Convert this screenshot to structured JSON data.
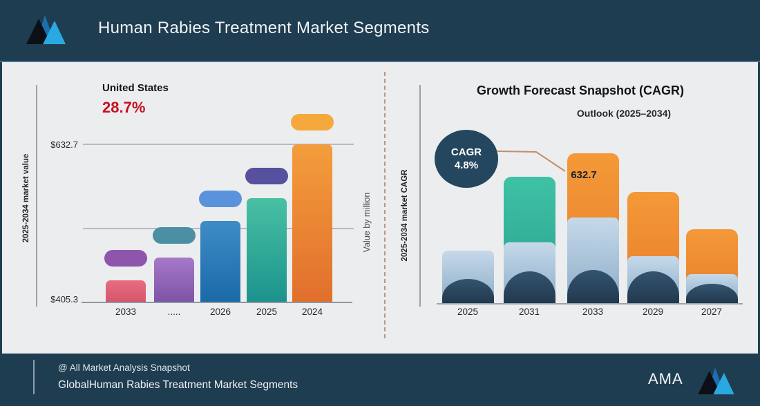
{
  "header": {
    "title": "Human Rabies Treatment Market Segments"
  },
  "brand": {
    "name": "AMA",
    "logo_colors": {
      "dark": "#0c1016",
      "blue": "#1c6fb0",
      "cyan": "#2aa9e1"
    }
  },
  "left_chart": {
    "region_label": "United States",
    "region_value": "28.7%",
    "accent_color": "#c6111f",
    "y_axis_label": "2025-2034 market value",
    "y_tick_top": "$632.7",
    "y_tick_bottom": "$405.3"
  },
  "middle": {
    "value_axis_note": "Value by million",
    "cagr_axis_label": "2025-2034 market CAGR"
  },
  "right_chart": {
    "title": "Growth Forecast Snapshot (CAGR)",
    "subtitle": "Outlook (2025–2034)",
    "cagr_badge": {
      "label": "CAGR",
      "value": "4.8%"
    },
    "peak_label": "632.7",
    "connector_color": "#c38e6b"
  },
  "footer": {
    "line1": "@ All Market Analysis Snapshot",
    "line2": "GlobalHuman Rabies Treatment Market Segments",
    "brand": "AMA"
  },
  "chart_data": [
    {
      "name": "us-market-value",
      "type": "bar",
      "title": "United States",
      "ylabel": "2025-2034 market value",
      "ylim": [
        405.3,
        660
      ],
      "yticks_labeled": [
        "$405.3",
        "$632.7"
      ],
      "y_gridline_values": [
        519,
        632.7
      ],
      "grid": true,
      "categories": [
        "2033",
        ".....",
        "2026",
        "2025",
        "2024"
      ],
      "values": [
        436,
        469,
        522,
        555,
        632.7
      ],
      "values_note": "estimated from gridlines; 2024 aligns with labeled 632.7 line",
      "bars": [
        {
          "category": "2033",
          "value": 436,
          "colors": [
            "#e76d81",
            "#d6566c"
          ],
          "cap_color": "#8d55ac"
        },
        {
          "category": ".....",
          "value": 469,
          "colors": [
            "#a678c9",
            "#7e54a6"
          ],
          "cap_color": "#4b8fa4"
        },
        {
          "category": "2026",
          "value": 522,
          "colors": [
            "#3f8cc5",
            "#1b6aa9"
          ],
          "cap_color": "#5b92dc"
        },
        {
          "category": "2025",
          "value": 555,
          "colors": [
            "#49c0a3",
            "#1b938d"
          ],
          "cap_color": "#56509f"
        },
        {
          "category": "2024",
          "value": 632.7,
          "colors": [
            "#f49d3c",
            "#e16f2c"
          ],
          "cap_color": "#f5a93d"
        }
      ]
    },
    {
      "name": "growth-forecast-cagr",
      "type": "bar",
      "stacked": true,
      "title": "Growth Forecast Snapshot (CAGR)",
      "subtitle": "Outlook (2025–2034)",
      "legend_position": "none",
      "grid": false,
      "categories": [
        "2025",
        "2031",
        "2033",
        "2029",
        "2027"
      ],
      "totals": [
        221,
        534,
        632.7,
        470,
        313
      ],
      "totals_note": "estimated; only 2033 is labeled 632.7 on chart",
      "annotations": {
        "cagr": "4.8%",
        "labeled_value": {
          "category": "2033",
          "value": 632.7
        }
      },
      "palette": {
        "navy": [
          "#33546f",
          "#22394e"
        ],
        "lightblue": [
          "#c6d9ea",
          "#8cacc7"
        ],
        "teal": [
          "#3ec2a5",
          "#2b9f8f"
        ],
        "orange": [
          "#f49938",
          "#e87d2a"
        ]
      },
      "bars": [
        {
          "category": "2025",
          "segments": [
            {
              "color_key": "navy",
              "value": 102
            },
            {
              "color_key": "lightblue",
              "value": 119
            }
          ]
        },
        {
          "category": "2031",
          "segments": [
            {
              "color_key": "navy",
              "value": 133
            },
            {
              "color_key": "lightblue",
              "value": 125
            },
            {
              "color_key": "teal",
              "value": 276
            }
          ]
        },
        {
          "category": "2033",
          "segments": [
            {
              "color_key": "navy",
              "value": 139
            },
            {
              "color_key": "lightblue",
              "value": 224
            },
            {
              "color_key": "orange",
              "value": 269.7
            }
          ]
        },
        {
          "category": "2029",
          "segments": [
            {
              "color_key": "navy",
              "value": 133
            },
            {
              "color_key": "lightblue",
              "value": 64
            },
            {
              "color_key": "orange",
              "value": 273
            }
          ]
        },
        {
          "category": "2027",
          "segments": [
            {
              "color_key": "navy",
              "value": 81
            },
            {
              "color_key": "lightblue",
              "value": 41
            },
            {
              "color_key": "orange",
              "value": 191
            }
          ]
        }
      ]
    }
  ]
}
